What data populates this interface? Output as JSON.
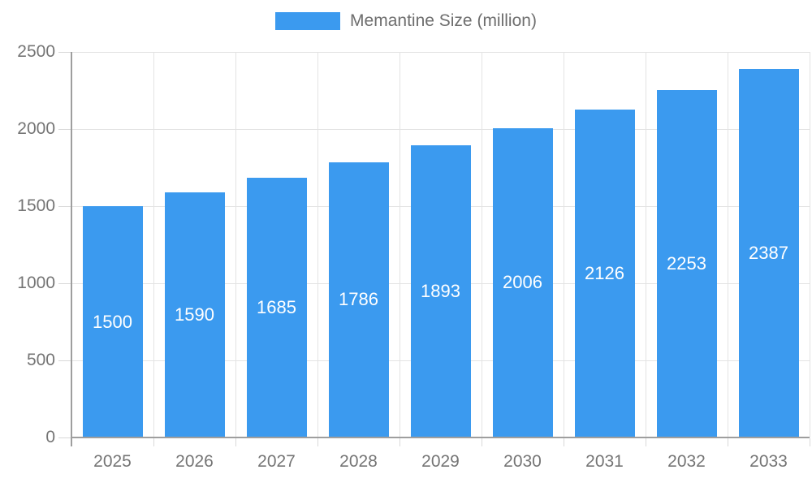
{
  "chart_data": {
    "type": "bar",
    "title": "",
    "legend": "Memantine Size (million)",
    "legend_position": "top-center",
    "categories": [
      "2025",
      "2026",
      "2027",
      "2028",
      "2029",
      "2030",
      "2031",
      "2032",
      "2033"
    ],
    "series": [
      {
        "name": "Memantine Size (million)",
        "values": [
          1500,
          1590,
          1685,
          1786,
          1893,
          2006,
          2126,
          2253,
          2387
        ]
      }
    ],
    "value_labels": [
      "1500",
      "1590",
      "1685",
      "1786",
      "1893",
      "2006",
      "2126",
      "2253",
      "2387"
    ],
    "xlabel": "",
    "ylabel": "",
    "ylim": [
      0,
      2500
    ],
    "yticks": [
      0,
      500,
      1000,
      1500,
      2000,
      2500
    ],
    "grid": true,
    "colors": {
      "bar": "#3b9aef",
      "value_label": "#ffffff",
      "axis_text": "#757575",
      "legend_text": "#6e6e6e",
      "gridline": "#e3e3e3",
      "axis_line": "#9e9e9e",
      "background": "#ffffff"
    }
  }
}
